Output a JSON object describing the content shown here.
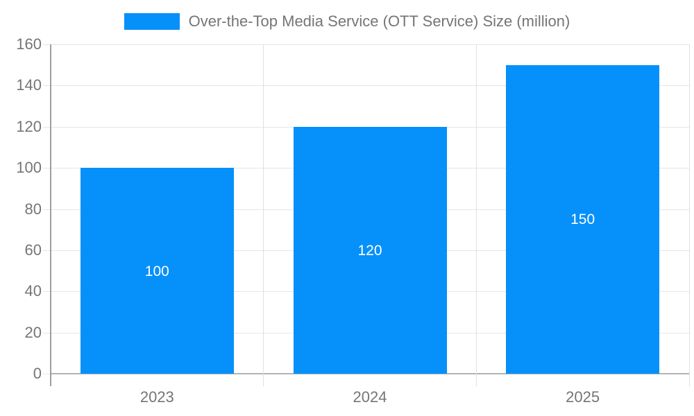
{
  "chart_data": {
    "type": "bar",
    "title": "",
    "legend_label": "Over-the-Top Media Service (OTT Service) Size (million)",
    "legend_position": "top",
    "categories": [
      "2023",
      "2024",
      "2025"
    ],
    "series": [
      {
        "name": "Over-the-Top Media Service (OTT Service) Size (million)",
        "values": [
          100,
          120,
          150
        ],
        "data_labels": [
          "100",
          "120",
          "150"
        ]
      }
    ],
    "xlabel": "",
    "ylabel": "",
    "ylim": [
      0,
      160
    ],
    "yticks": [
      0,
      20,
      40,
      60,
      80,
      100,
      120,
      140,
      160
    ],
    "grid": true,
    "colors": {
      "bar": "#0690fa",
      "legend_text": "#757575",
      "axis_text": "#757575",
      "data_label_text": "#ffffff",
      "gridline": "#e6e6e6",
      "category_line": "#e0e0e0",
      "axis_line": "#9e9e9e",
      "baseline": "#b3b3b3",
      "background": "#ffffff"
    }
  }
}
